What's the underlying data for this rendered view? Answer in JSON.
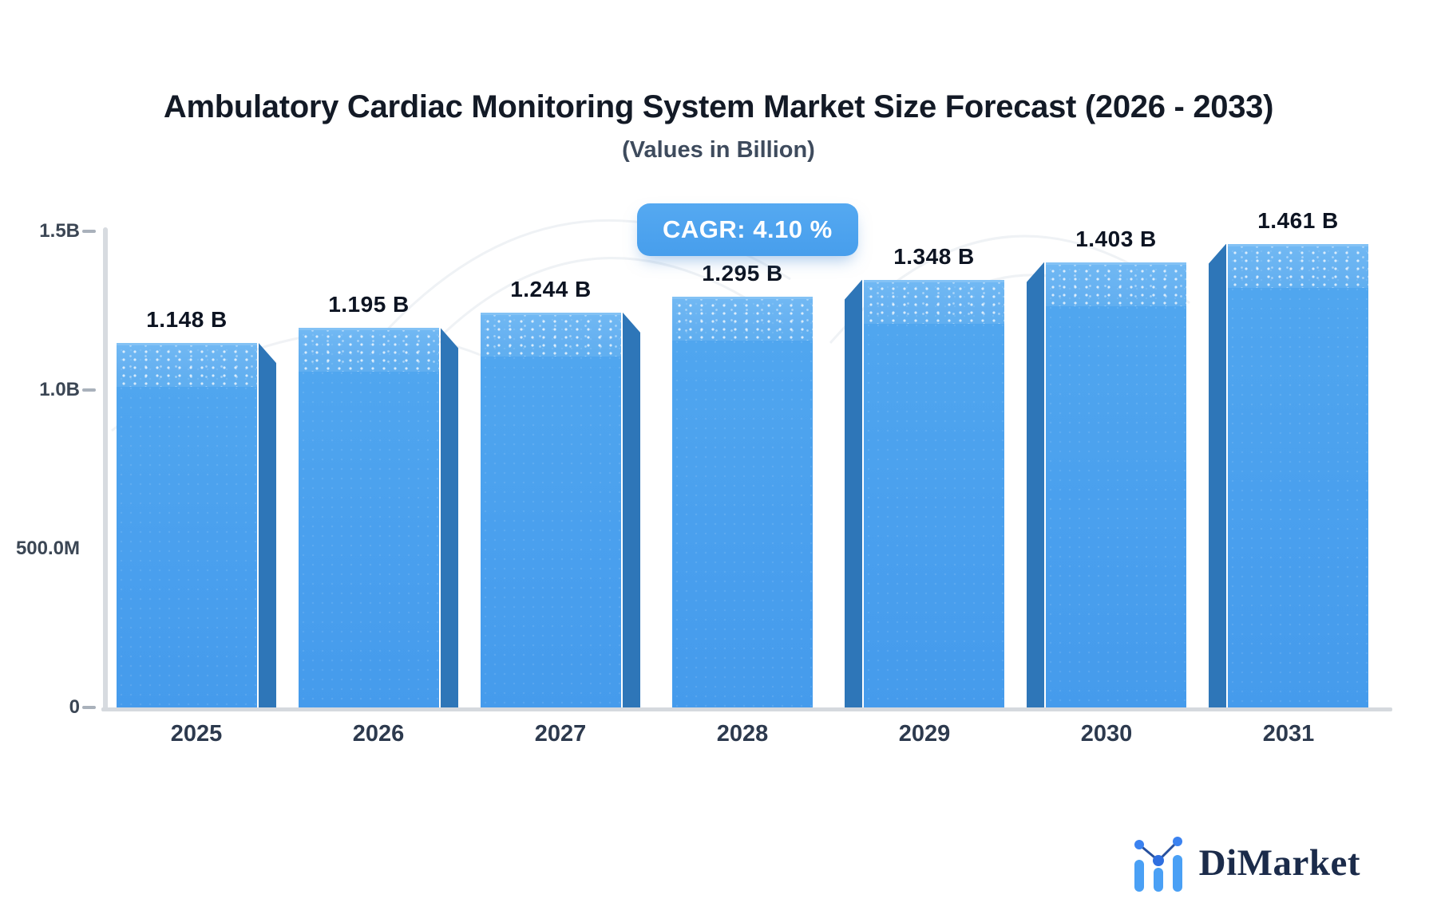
{
  "header": {
    "title": "Ambulatory Cardiac Monitoring System Market Size Forecast (2026 - 2033)",
    "subtitle": "(Values in Billion)"
  },
  "badge": {
    "label": "CAGR: 4.10 %"
  },
  "chart_data": {
    "type": "bar",
    "title": "Ambulatory Cardiac Monitoring System Market Size Forecast (2026 - 2033)",
    "subtitle": "(Values in Billion)",
    "cagr_label": "CAGR: 4.10 %",
    "categories": [
      "2025",
      "2026",
      "2027",
      "2028",
      "2029",
      "2030",
      "2031"
    ],
    "values": [
      1.148,
      1.195,
      1.244,
      1.295,
      1.348,
      1.403,
      1.461
    ],
    "bar_labels": [
      "1.148 B",
      "1.195 B",
      "1.244 B",
      "1.295 B",
      "1.348 B",
      "1.403 B",
      "1.461 B"
    ],
    "xlabel": "",
    "ylabel": "",
    "ylim": [
      0,
      1.5
    ],
    "yticks": [
      {
        "label": "1.5B",
        "value": 1.5,
        "dash": true
      },
      {
        "label": "1.0B",
        "value": 1.0,
        "dash": true
      },
      {
        "label": "500.0M",
        "value": 0.5,
        "dash": false
      },
      {
        "label": "0",
        "value": 0.0,
        "dash": true
      }
    ],
    "grid": false,
    "legend": "none",
    "colors": {
      "bar_face": "#4AA0EE",
      "bar_face_highlight": "#61B0F2",
      "bar_side_3d": "#2E76B8",
      "axis_line": "#D7DBE0",
      "tick_dash": "#A9B1BB",
      "badge_background": "#479EEC",
      "badge_text": "#FFFFFF",
      "value_label": "#0D1422",
      "background": "#FFFFFF"
    }
  },
  "logo": {
    "text": "DiMarket"
  }
}
